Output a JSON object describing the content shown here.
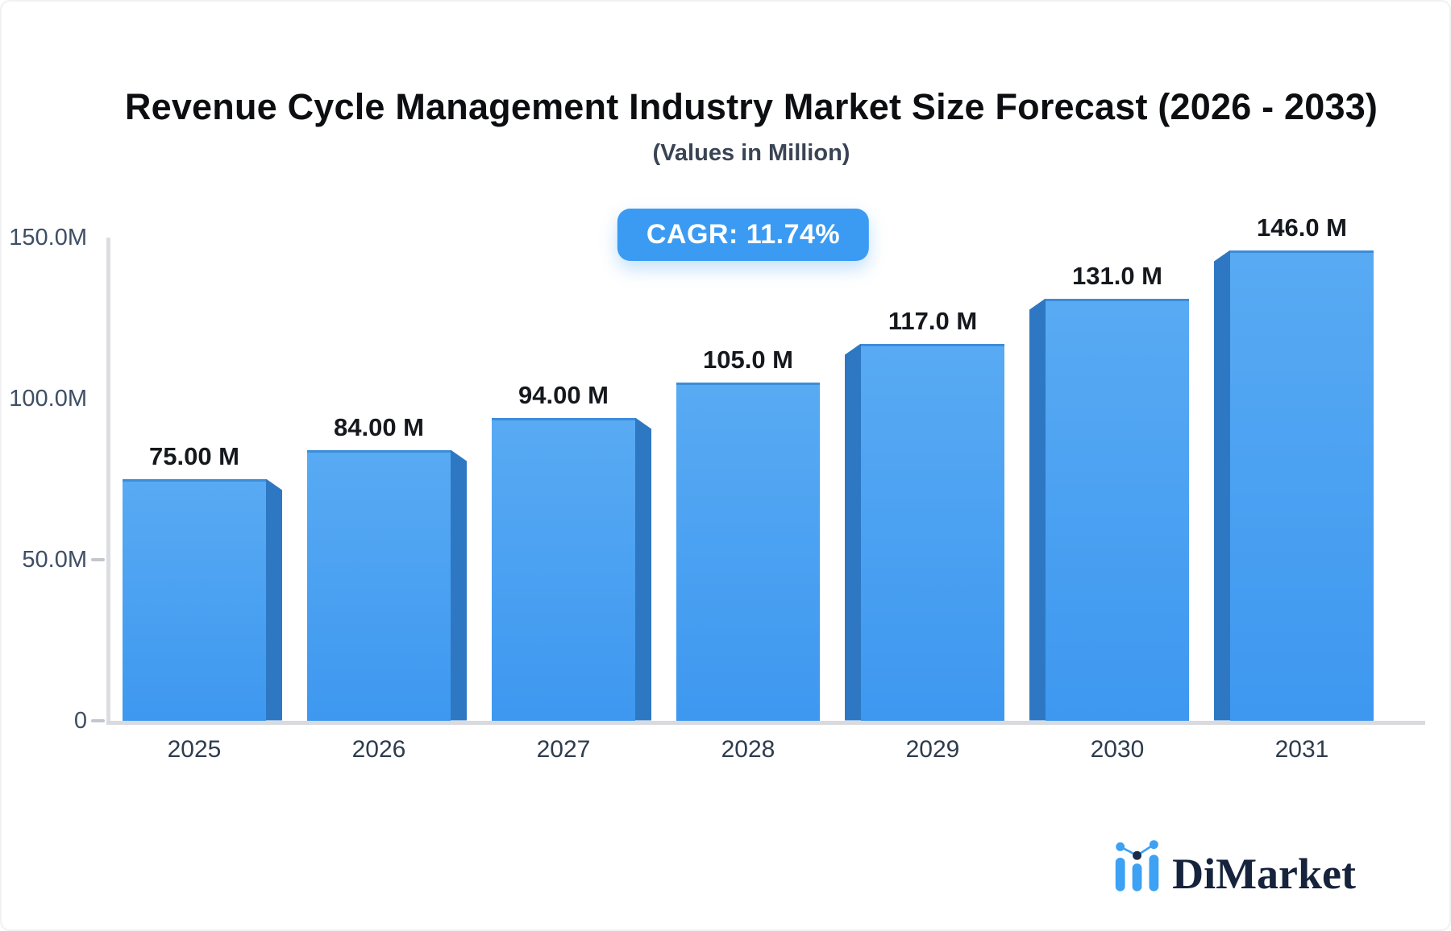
{
  "header": {
    "title": "Revenue Cycle Management Industry Market Size Forecast (2026 - 2033)",
    "subtitle": "(Values in Million)"
  },
  "badge": {
    "label": "CAGR: 11.74%",
    "bg_color": "#3b9bf3",
    "text_color": "#ffffff"
  },
  "chart_data": {
    "type": "bar",
    "title": "Revenue Cycle Management Industry Market Size Forecast (2026 - 2033)",
    "subtitle": "(Values in Million)",
    "unit": "Million",
    "categories": [
      "2025",
      "2026",
      "2027",
      "2028",
      "2029",
      "2030",
      "2031"
    ],
    "values": [
      75,
      84,
      94,
      105,
      117,
      131,
      146
    ],
    "value_labels": [
      "75.00 M",
      "84.00 M",
      "94.00 M",
      "105.0 M",
      "117.0 M",
      "131.0 M",
      "146.0 M"
    ],
    "ylim": [
      0,
      150
    ],
    "y_ticks": [
      {
        "value": 0,
        "label": "0",
        "has_dash": true
      },
      {
        "value": 50,
        "label": "50.0M",
        "has_dash": true
      },
      {
        "value": 100,
        "label": "100.0M",
        "has_dash": false
      },
      {
        "value": 150,
        "label": "150.0M",
        "has_dash": false
      }
    ],
    "grid": false,
    "legend": false,
    "bar_face_gradient_top": "#58aaf3",
    "bar_face_gradient_bottom": "#3e98f0",
    "bar_bevel_color": "#2e78c3",
    "bevel_sides": [
      "right",
      "right",
      "right",
      "none",
      "left",
      "left",
      "left"
    ]
  },
  "footer": {
    "brand": "DiMarket",
    "brand_color": "#16233c",
    "icon": "bar-line-chart-icon",
    "icon_blue": "#3da1f4",
    "icon_navy": "#1b2b47"
  }
}
